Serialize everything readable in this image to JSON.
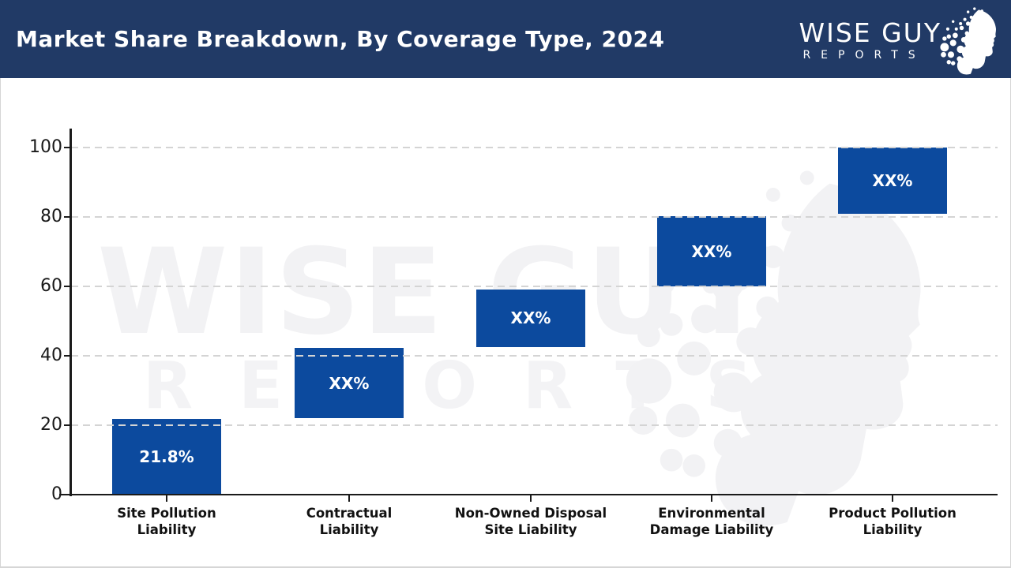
{
  "header": {
    "title": "Market Share Breakdown, By Coverage Type, 2024",
    "logo": {
      "line1": "WISE GUY",
      "line2": "REPORTS"
    }
  },
  "watermark": {
    "line1": "WISE GUY",
    "line2": "REPORTS"
  },
  "colors": {
    "header_bg": "#213a66",
    "bar": "#0c4a9e",
    "grid": "#d4d4d4",
    "axis": "#1a1a1a",
    "watermark": "#f2f2f4",
    "bar_label": "#ffffff"
  },
  "chart_data": {
    "type": "bar",
    "subtype": "waterfall",
    "title": "Market Share Breakdown, By Coverage Type, 2024",
    "categories": [
      "Site Pollution Liability",
      "Contractual Liability",
      "Non-Owned Disposal Site Liability",
      "Environmental Damage Liability",
      "Product Pollution Liability"
    ],
    "category_lines": [
      [
        "Site Pollution",
        "Liability"
      ],
      [
        "Contractual",
        "Liability"
      ],
      [
        "Non-Owned Disposal",
        "Site Liability"
      ],
      [
        "Environmental",
        "Damage Liability"
      ],
      [
        "Product Pollution",
        "Liability"
      ]
    ],
    "bars": [
      {
        "start": 0,
        "end": 21.8,
        "label": "21.8%"
      },
      {
        "start": 22,
        "end": 42.3,
        "label": "XX%"
      },
      {
        "start": 42.5,
        "end": 59.1,
        "label": "XX%"
      },
      {
        "start": 60,
        "end": 80.2,
        "label": "XX%"
      },
      {
        "start": 81,
        "end": 100,
        "label": "XX%"
      }
    ],
    "xlabel": "",
    "ylabel": "",
    "ylim": [
      0,
      105
    ],
    "yticks": [
      0,
      20,
      40,
      60,
      80,
      100
    ],
    "grid": "horizontal-dashed",
    "legend": "none",
    "bar_color": "#0c4a9e",
    "bar_label_color": "#ffffff"
  }
}
